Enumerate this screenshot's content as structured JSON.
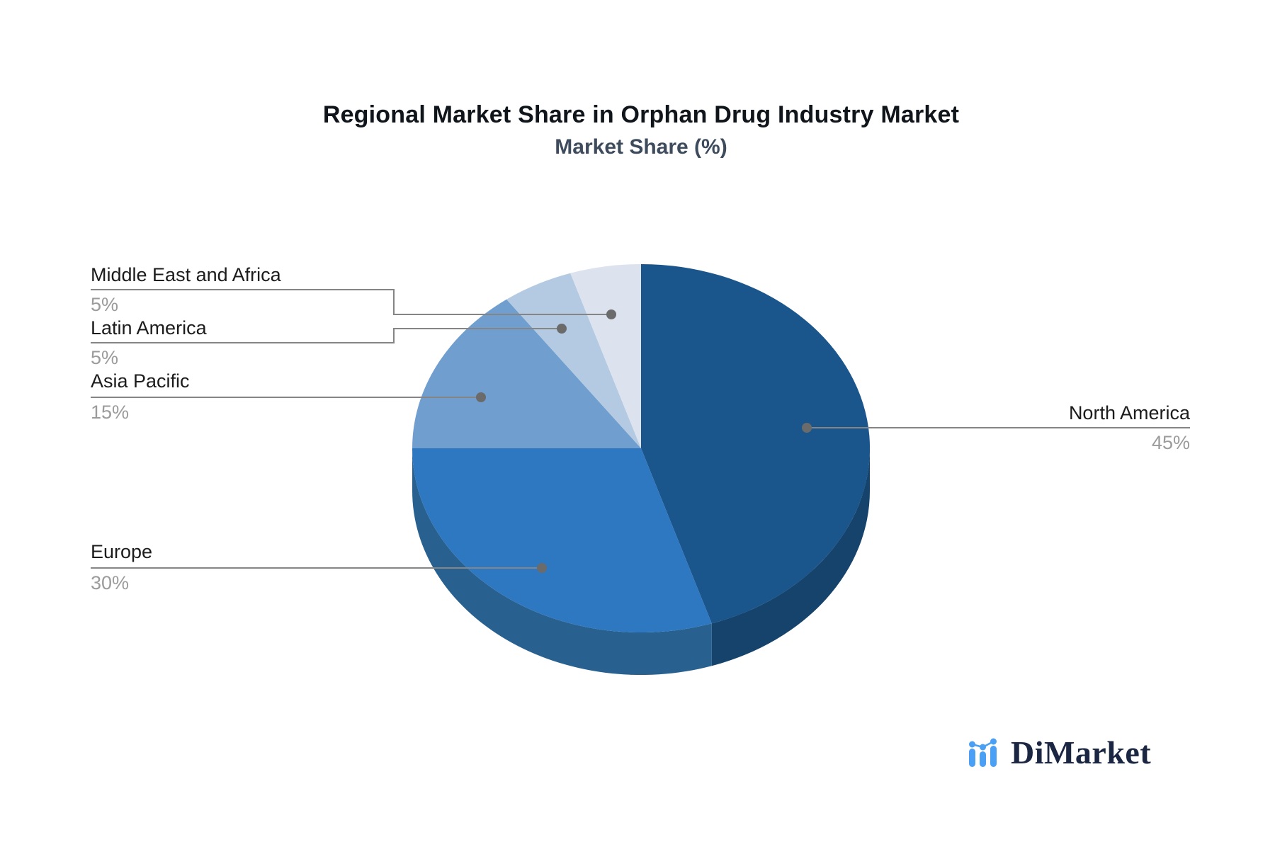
{
  "title": "Regional Market Share in Orphan Drug Industry Market",
  "subtitle": "Market Share (%)",
  "chart_data": {
    "type": "pie",
    "title": "Regional Market Share in Orphan Drug Industry Market",
    "subtitle": "Market Share (%)",
    "unit": "%",
    "start_angle_deg": 0,
    "direction": "clockwise",
    "effect": "3d-depth",
    "legend_position": "callout-labels",
    "slices": [
      {
        "label": "North America",
        "value": 45,
        "value_label": "45%",
        "color": "#1a568c",
        "side_color": "#16436b"
      },
      {
        "label": "Europe",
        "value": 30,
        "value_label": "30%",
        "color": "#2e77c1",
        "side_color": "#28618f"
      },
      {
        "label": "Asia Pacific",
        "value": 15,
        "value_label": "15%",
        "color": "#6f9ecf",
        "side_color": "#5a82ab"
      },
      {
        "label": "Latin America",
        "value": 5,
        "value_label": "5%",
        "color": "#b3cae2",
        "side_color": "#93a7bd"
      },
      {
        "label": "Middle East and Africa",
        "value": 5,
        "value_label": "5%",
        "color": "#dce3ee",
        "side_color": "#b6bdc9"
      }
    ]
  },
  "colors": {
    "leader_line": "#858585",
    "leader_dot": "#6b6b6b",
    "label_text": "#1c1c1c",
    "value_text": "#9b9b9b",
    "title_text": "#10151b",
    "subtitle_text": "#3d4b5c"
  },
  "branding": {
    "logo_text": "DiMarket",
    "logo_icon": "bar-chart-sparkline-icon",
    "icon_color": "#4aa0f4",
    "text_color": "#1b2742"
  }
}
